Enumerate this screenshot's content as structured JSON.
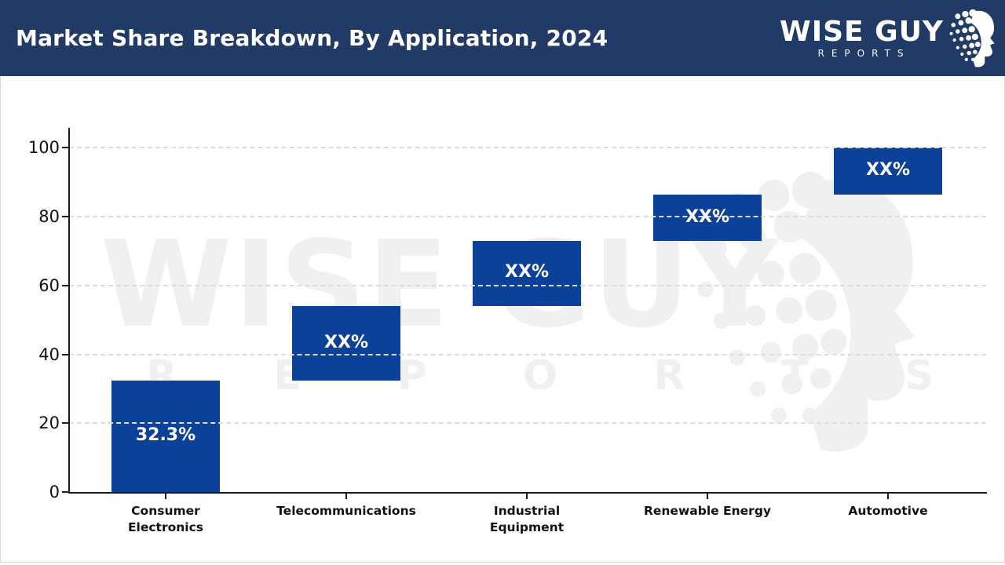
{
  "header": {
    "title": "Market Share Breakdown, By Application, 2024",
    "logo": {
      "line1": "WISE GUY",
      "line2": "REPORTS"
    }
  },
  "watermark": {
    "line1": "WISE GUY",
    "line2": "R E P O R T S"
  },
  "colors": {
    "header_bg": "#213A66",
    "bar": "#0B4199",
    "bar_label": "#FFFFFF",
    "grid": "#DEDEDE",
    "axis": "#1A1A1A",
    "watermark": "#F0F0F2"
  },
  "chart_data": {
    "type": "bar",
    "subtype": "waterfall-cumulative",
    "title": "Market Share Breakdown, By Application, 2024",
    "categories": [
      "Consumer Electronics",
      "Telecommunications",
      "Industrial Equipment",
      "Renewable Energy",
      "Automotive"
    ],
    "category_lines": [
      [
        "Consumer",
        "Electronics"
      ],
      [
        "Telecommunications"
      ],
      [
        "Industrial",
        "Equipment"
      ],
      [
        "Renewable Energy"
      ],
      [
        "Automotive"
      ]
    ],
    "segments": [
      {
        "category": "Consumer Electronics",
        "start": 0,
        "end": 32.3,
        "label": "32.3%"
      },
      {
        "category": "Telecommunications",
        "start": 32.3,
        "end": 54.0,
        "label": "XX%"
      },
      {
        "category": "Industrial Equipment",
        "start": 54.0,
        "end": 73.0,
        "label": "XX%"
      },
      {
        "category": "Renewable Energy",
        "start": 73.0,
        "end": 86.3,
        "label": "XX%"
      },
      {
        "category": "Automotive",
        "start": 86.3,
        "end": 100.0,
        "label": "XX%"
      }
    ],
    "yticks": [
      0,
      20,
      40,
      60,
      80,
      100
    ],
    "ylim": [
      0,
      100
    ],
    "xlabel": "",
    "ylabel": "",
    "grid": "dashed-horizontal",
    "legend": "none"
  }
}
